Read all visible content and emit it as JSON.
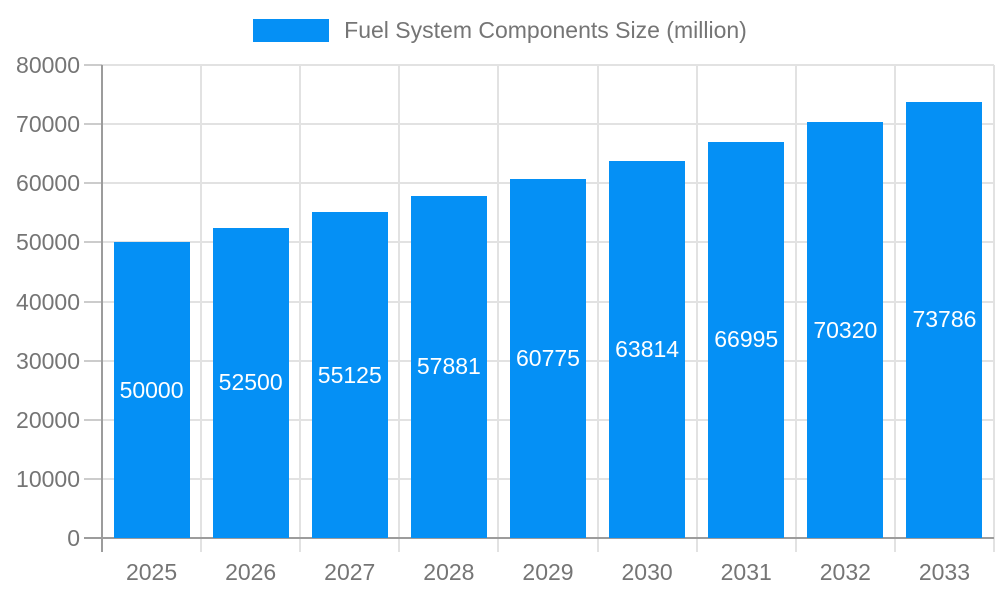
{
  "chart_data": {
    "type": "bar",
    "title": "Fuel System Components Size (million)",
    "categories": [
      "2025",
      "2026",
      "2027",
      "2028",
      "2029",
      "2030",
      "2031",
      "2032",
      "2033"
    ],
    "values": [
      50000,
      52500,
      55125,
      57881,
      60775,
      63814,
      66995,
      70320,
      73786
    ],
    "bar_value_labels": [
      "50000",
      "52500",
      "55125",
      "57881",
      "60775",
      "63814",
      "66995",
      "70320",
      "73786"
    ],
    "xlabel": "",
    "ylabel": "",
    "ylim": [
      0,
      80000
    ],
    "y_tick_step": 10000,
    "y_tick_labels": [
      "0",
      "10000",
      "20000",
      "30000",
      "40000",
      "50000",
      "60000",
      "70000",
      "80000"
    ],
    "grid": "both",
    "legend_position": "top-center",
    "colors": {
      "bar": "#0590F5",
      "axis_line": "#9c9c9c",
      "gridline": "#e2e2e2",
      "tick": "#cccccc",
      "axis_text": "#757575",
      "legend_text": "#757575",
      "bar_label_text": "#ffffff",
      "background": "#ffffff"
    }
  }
}
